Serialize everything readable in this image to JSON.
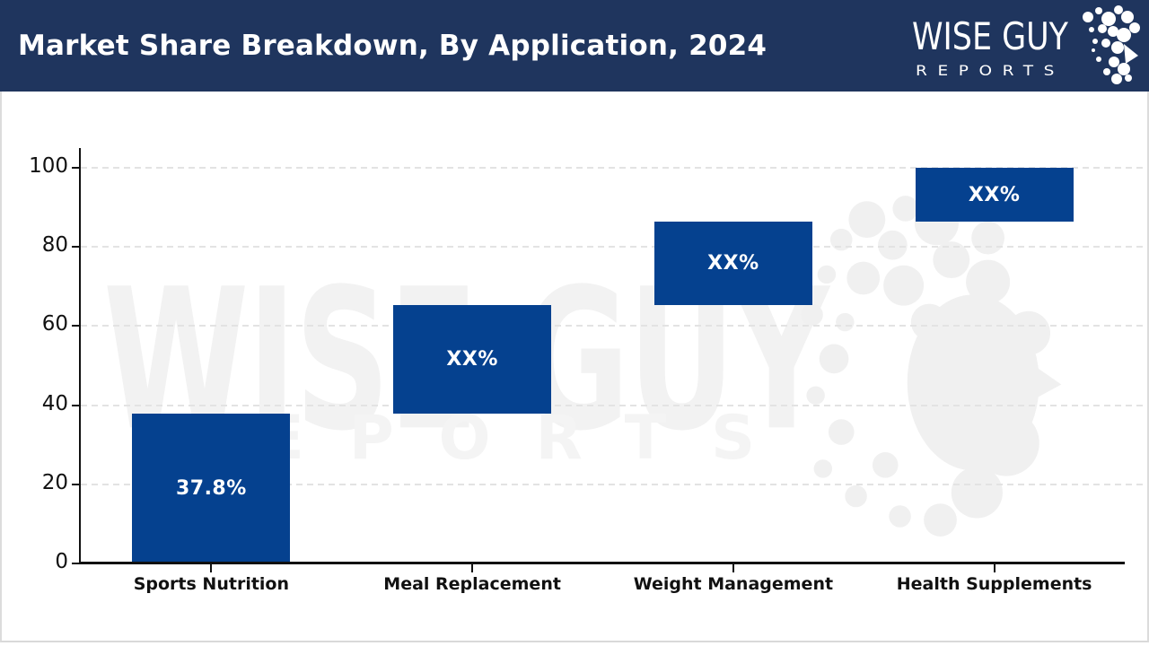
{
  "header": {
    "title": "Market Share Breakdown, By Application, 2024",
    "bg_color": "#1f355e",
    "logo": {
      "line1": "WISE GUY",
      "line2": "REPORTS"
    }
  },
  "watermark": {
    "line1": "WISE GUY",
    "line2": "REPORTS"
  },
  "chart_data": {
    "type": "bar",
    "subtype": "waterfall",
    "title": "Market Share Breakdown, By Application, 2024",
    "categories": [
      "Sports Nutrition",
      "Meal Replacement",
      "Weight Management",
      "Health Supplements"
    ],
    "segments": [
      {
        "category": "Sports Nutrition",
        "start": 0,
        "end": 37.8,
        "label": "37.8%"
      },
      {
        "category": "Meal Replacement",
        "start": 37.8,
        "end": 65.2,
        "label": "XX%"
      },
      {
        "category": "Weight Management",
        "start": 65.2,
        "end": 86.4,
        "label": "XX%"
      },
      {
        "category": "Health Supplements",
        "start": 86.4,
        "end": 100,
        "label": "XX%"
      }
    ],
    "xlabel": "",
    "ylabel": "",
    "ylim": [
      0,
      100
    ],
    "yticks": [
      0,
      20,
      40,
      60,
      80,
      100
    ],
    "grid": "horizontal-dashed",
    "legend": "none",
    "bar_color": "#05418f",
    "bar_label_color": "#ffffff",
    "axis_color": "#111111",
    "gridline_color": "#e3e3e3"
  }
}
